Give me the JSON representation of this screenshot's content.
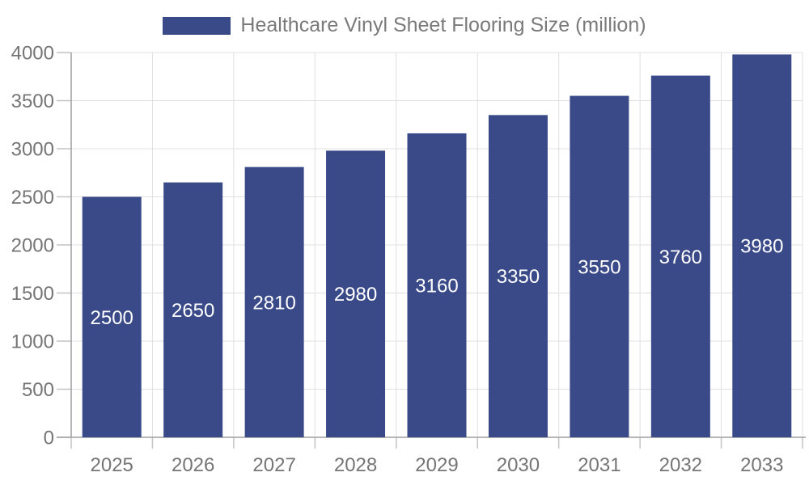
{
  "chart_data": {
    "type": "bar",
    "title": "Healthcare Vinyl Sheet Flooring Size (million)",
    "categories": [
      "2025",
      "2026",
      "2027",
      "2028",
      "2029",
      "2030",
      "2031",
      "2032",
      "2033"
    ],
    "series": [
      {
        "name": "Healthcare Vinyl Sheet Flooring Size (million)",
        "values": [
          2500,
          2650,
          2810,
          2980,
          3160,
          3350,
          3550,
          3760,
          3980
        ]
      }
    ],
    "bar_value_labels": [
      "2500",
      "2650",
      "2810",
      "2980",
      "3160",
      "3350",
      "3550",
      "3760",
      "3980"
    ],
    "xlabel": "",
    "ylabel": "",
    "ylim": [
      0,
      4000
    ],
    "yticks": [
      0,
      500,
      1000,
      1500,
      2000,
      2500,
      3000,
      3500,
      4000
    ],
    "ytick_labels": [
      "0",
      "500",
      "1000",
      "1500",
      "2000",
      "2500",
      "3000",
      "3500",
      "4000"
    ],
    "grid": true,
    "legend_position": "top",
    "bar_labels_visible": true,
    "colors": {
      "bar": "#3A4A88",
      "bar_label_text": "#FFFFFF",
      "axis_text": "#757575",
      "legend_text": "#7A7A7A",
      "grid_line": "#E0E0E0",
      "axis_line": "#9E9E9E",
      "tick_mark": "#C4C4C4",
      "background": "#FFFFFF"
    }
  }
}
